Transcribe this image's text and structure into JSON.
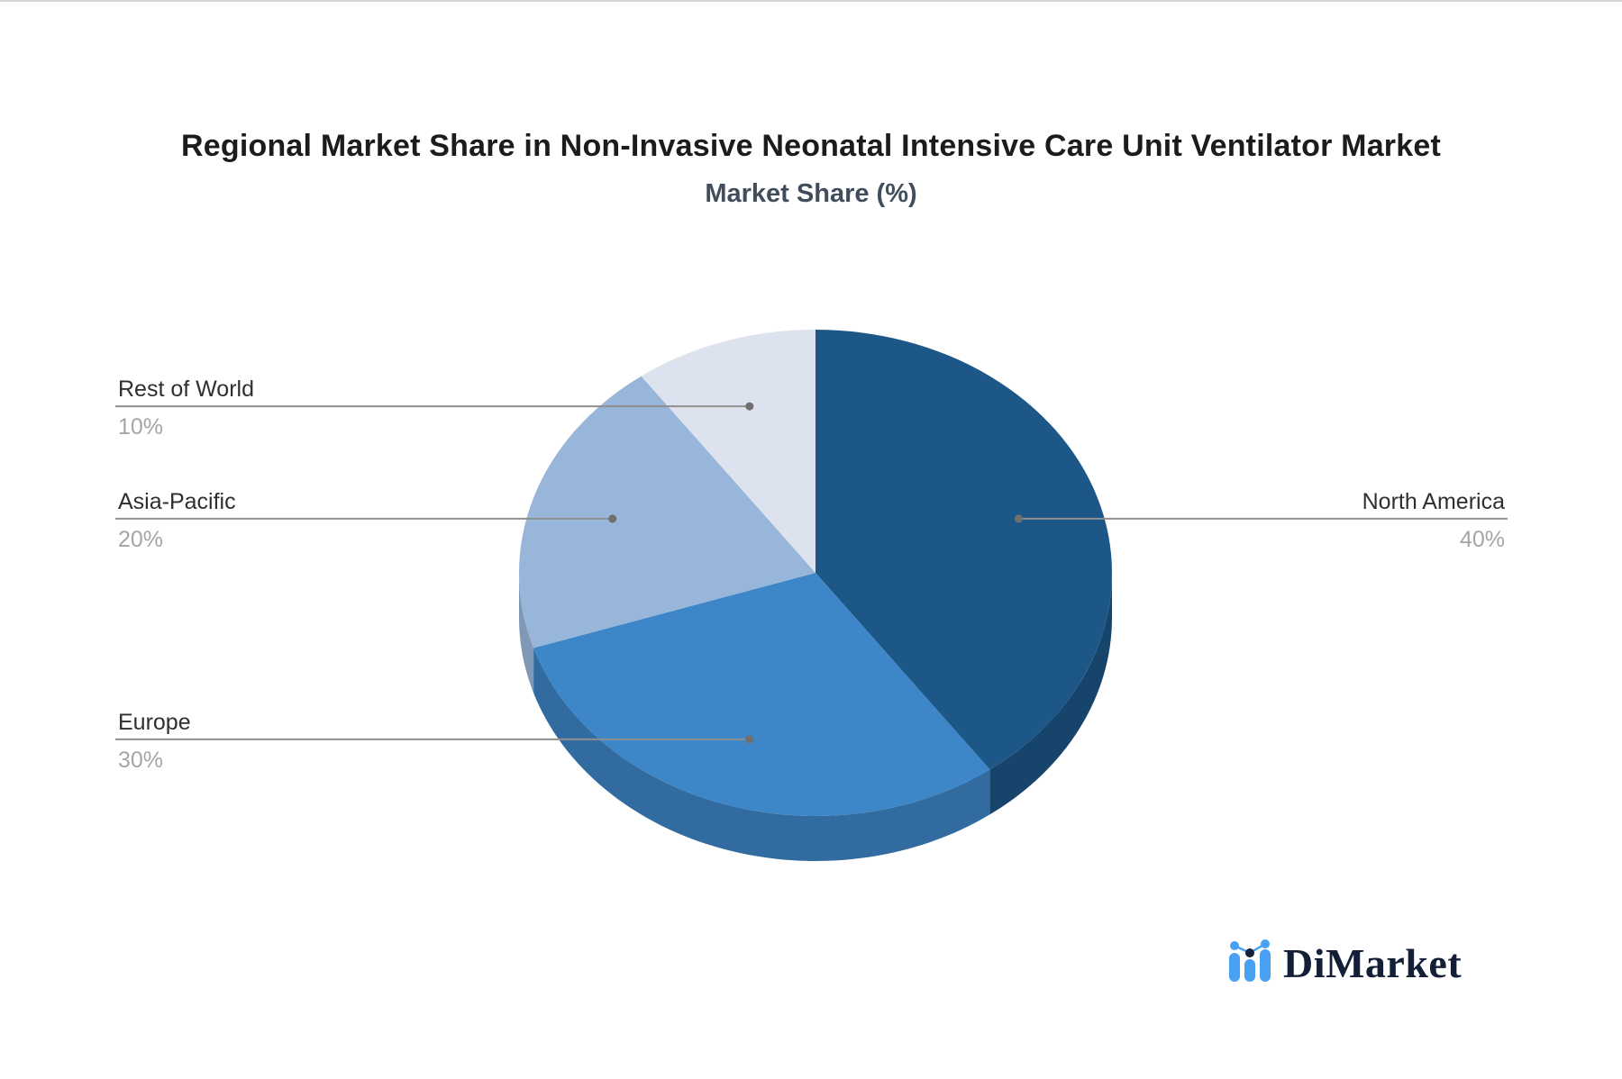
{
  "page": {
    "background": "#ffffff"
  },
  "header": {
    "title": "Regional Market Share in Non-Invasive Neonatal Intensive Care Unit Ventilator Market",
    "subtitle": "Market Share (%)"
  },
  "chart_data": {
    "type": "pie",
    "style": "3d",
    "unit": "%",
    "start_angle_deg": 0,
    "direction": "clockwise",
    "title": "Regional Market Share in Non-Invasive Neonatal Intensive Care Unit Ventilator Market",
    "subtitle": "Market Share (%)",
    "legend_position": "callout-labels",
    "slices": [
      {
        "label": "North America",
        "value": 40,
        "display_value": "40%",
        "color": "#1d5788",
        "side_color": "#17446a"
      },
      {
        "label": "Europe",
        "value": 30,
        "display_value": "30%",
        "color": "#3d86c7",
        "side_color": "#316b9f"
      },
      {
        "label": "Asia-Pacific",
        "value": 20,
        "display_value": "20%",
        "color": "#98b6d9",
        "side_color": "#7f98b5"
      },
      {
        "label": "Rest of World",
        "value": 10,
        "display_value": "10%",
        "color": "#dde3ee",
        "side_color": "#b9c3d4"
      }
    ],
    "callout_style": {
      "line_color": "#8f8f8f",
      "dot_color": "#6f6f6f",
      "label_color": "#2f2f2f",
      "value_color": "#a5a5a9"
    }
  },
  "branding": {
    "logo_text": "DiMarket",
    "bar_color": "#4aa0f2",
    "dark_color": "#15223c"
  }
}
